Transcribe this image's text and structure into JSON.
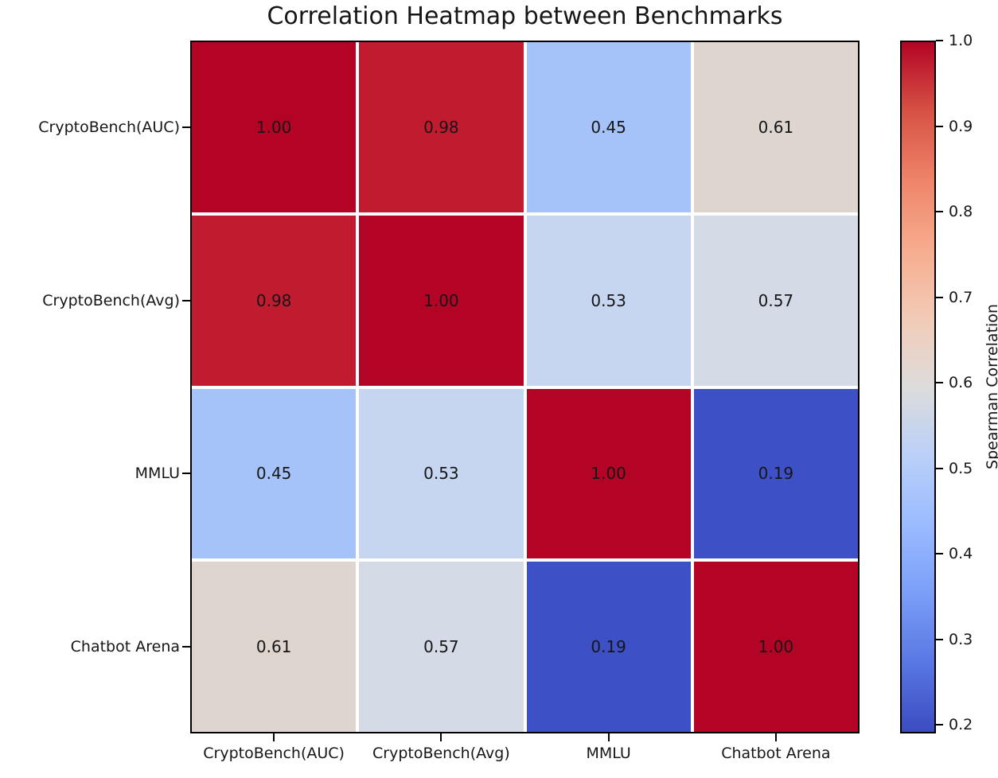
{
  "title": "Correlation Heatmap between Benchmarks",
  "chart_data": {
    "type": "heatmap",
    "categories": [
      "CryptoBench(AUC)",
      "CryptoBench(Avg)",
      "MMLU",
      "Chatbot Arena"
    ],
    "matrix": [
      [
        1.0,
        0.98,
        0.45,
        0.61
      ],
      [
        0.98,
        1.0,
        0.53,
        0.57
      ],
      [
        0.45,
        0.53,
        1.0,
        0.19
      ],
      [
        0.61,
        0.57,
        0.19,
        1.0
      ]
    ],
    "cell_labels": [
      [
        "1.00",
        "0.98",
        "0.45",
        "0.61"
      ],
      [
        "0.98",
        "1.00",
        "0.53",
        "0.57"
      ],
      [
        "0.45",
        "0.53",
        "1.00",
        "0.19"
      ],
      [
        "0.61",
        "0.57",
        "0.19",
        "1.00"
      ]
    ],
    "value_colors": {
      "1.00": "#b40426",
      "0.98": "#c11b30",
      "0.61": "#ded5cf",
      "0.57": "#d4dae6",
      "0.53": "#c6d6f0",
      "0.45": "#a6c3f9",
      "0.19": "#3d50c6"
    },
    "colormap": "coolwarm",
    "colorbar": {
      "label": "Spearman Correlation",
      "ticks": [
        "1.0",
        "0.9",
        "0.8",
        "0.7",
        "0.6",
        "0.5",
        "0.4",
        "0.3",
        "0.2"
      ],
      "vmin": 0.19,
      "vmax": 1.0,
      "gradient_top_to_bottom": [
        "#b40426",
        "#d65244",
        "#ee8468",
        "#f7ac8e",
        "#f2cbb7",
        "#dddcdc",
        "#bad0f8",
        "#9abbff",
        "#7b9ef8",
        "#5977e3",
        "#3b4cc0"
      ]
    },
    "grid": false,
    "legend_position": "right-colorbar"
  }
}
